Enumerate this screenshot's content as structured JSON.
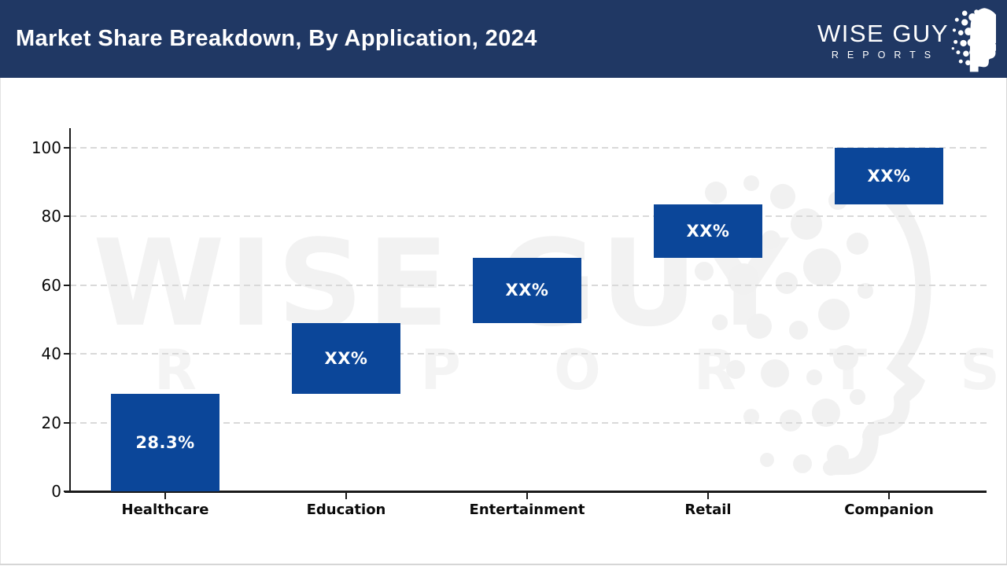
{
  "header": {
    "title": "Market Share Breakdown, By Application, 2024",
    "bg_color": "#203864",
    "logo": {
      "line1": "WISE GUY",
      "line2": "REPORTS"
    }
  },
  "watermark": {
    "line1": "WISE GUY",
    "line2": "R E P O R T S"
  },
  "chart_data": {
    "type": "bar",
    "subtype": "waterfall-floating-segments",
    "title": "Market Share Breakdown, By Application, 2024",
    "categories": [
      "Healthcare",
      "Education",
      "Entertainment",
      "Retail",
      "Companion"
    ],
    "series": [
      {
        "name": "Market Share %",
        "segments": [
          {
            "category": "Healthcare",
            "start": 0,
            "end": 28.3,
            "label": "28.3%"
          },
          {
            "category": "Education",
            "start": 28.3,
            "end": 49,
            "label": "XX%"
          },
          {
            "category": "Entertainment",
            "start": 49,
            "end": 68,
            "label": "XX%"
          },
          {
            "category": "Retail",
            "start": 68,
            "end": 83.5,
            "label": "XX%"
          },
          {
            "category": "Companion",
            "start": 83.5,
            "end": 100,
            "label": "XX%"
          }
        ]
      }
    ],
    "xlabel": "",
    "ylabel": "",
    "ylim": [
      0,
      100
    ],
    "yticks": [
      0,
      20,
      40,
      60,
      80,
      100
    ],
    "grid": "horizontal-dashed",
    "legend": "none",
    "bar_color": "#0b4699",
    "bar_label_color": "#ffffff",
    "axis_color": "#1a1a1a",
    "grid_color": "#d9d9d9"
  }
}
